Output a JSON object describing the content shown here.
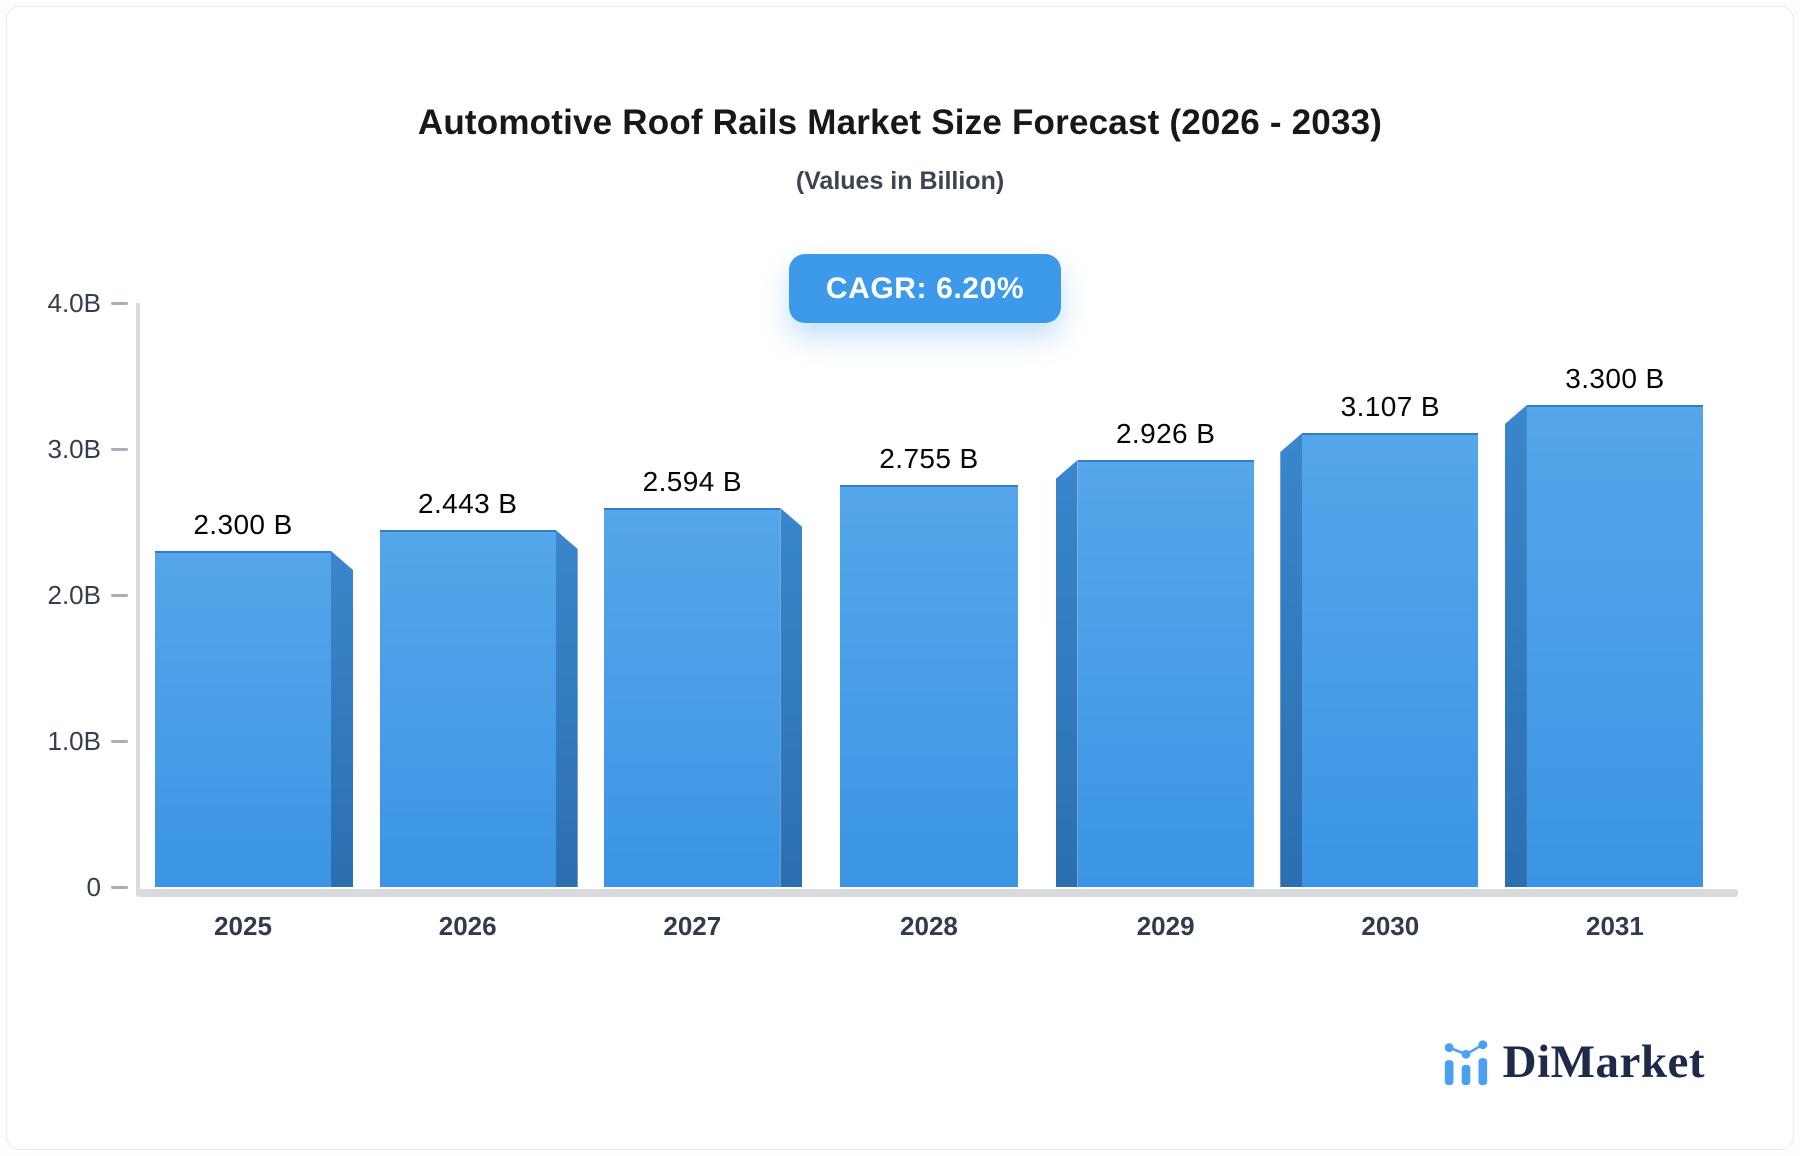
{
  "title": "Automotive Roof Rails Market Size Forecast (2026 - 2033)",
  "subtitle": "(Values in Billion)",
  "cagr_label": "CAGR: 6.20%",
  "brand": {
    "name": "DiMarket",
    "icon": "bar-line-chart-icon"
  },
  "colors": {
    "accent": "#3d9aea",
    "badge_bg": "#3d9aea",
    "bar_top": "#55a6ea",
    "bar_bottom": "#3b95e4",
    "bar_side_top": "#3a86cc",
    "bar_side_bottom": "#2b6fb0",
    "axis_line": "#d9dcdf",
    "baseline": "#d9dade",
    "tick": "#a9afb8",
    "logo_navy": "#1d2a49",
    "logo_blue": "#4aa0f2"
  },
  "chart_data": {
    "type": "bar",
    "title": "Automotive Roof Rails Market Size Forecast (2026 - 2033)",
    "subtitle": "(Values in Billion)",
    "categories": [
      "2025",
      "2026",
      "2027",
      "2028",
      "2029",
      "2030",
      "2031"
    ],
    "values": [
      2.3,
      2.443,
      2.594,
      2.755,
      2.926,
      3.107,
      3.3
    ],
    "bar_labels": [
      "2.300 B",
      "2.443 B",
      "2.594 B",
      "2.755 B",
      "2.926 B",
      "3.107 B",
      "3.300 B"
    ],
    "y_tick_labels": [
      "4.0B",
      "3.0B",
      "2.0B",
      "1.0B",
      "0"
    ],
    "ylim": [
      0,
      4
    ],
    "xlabel": "",
    "ylabel": "",
    "grid": false,
    "legend": null,
    "style_hint": "3d-bars-center-vanishing-perspective"
  }
}
